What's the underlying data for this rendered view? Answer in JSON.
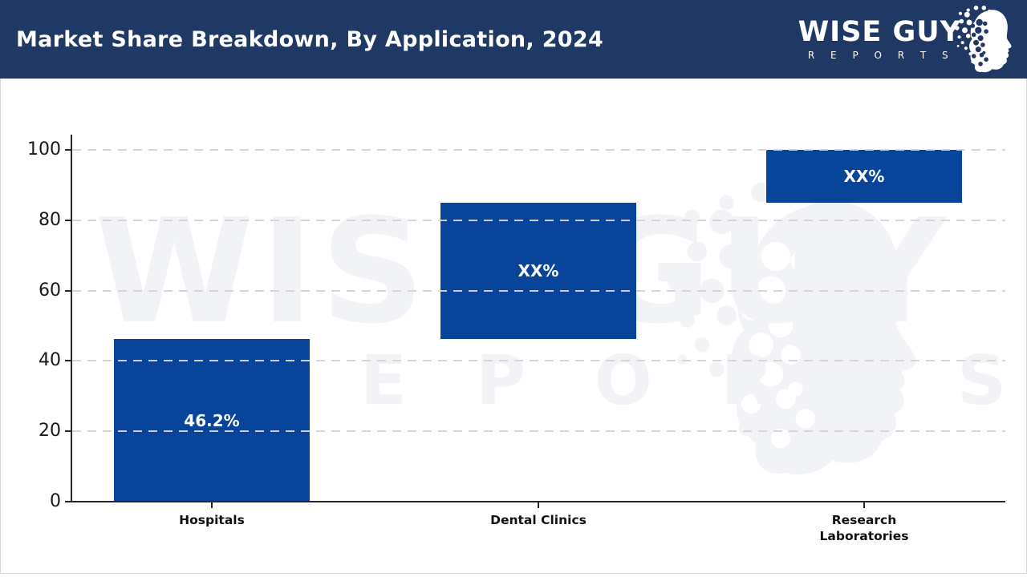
{
  "header": {
    "title": "Market Share Breakdown, By Application, 2024",
    "brand": {
      "name_line1": "WISE GUY",
      "name_line2": "R E P O R T S"
    }
  },
  "watermark": {
    "line1": "WISE GUY",
    "line2": "R E P O R T S"
  },
  "colors": {
    "header_bg": "#203864",
    "bar_fill": "#07449a",
    "grid": "#d5d5d5",
    "axis": "#262626",
    "bar_label": "#ffffff",
    "watermark": "#f2f3f6"
  },
  "chart_data": {
    "type": "bar",
    "subtype": "stacked-percentage-breakdown",
    "title": "Market Share Breakdown, By Application, 2024",
    "categories": [
      "Hospitals",
      "Dental Clinics",
      "Research Laboratories"
    ],
    "segments": [
      {
        "category": "Hospitals",
        "start": 0,
        "end": 46.2,
        "label": "46.2%"
      },
      {
        "category": "Dental Clinics",
        "start": 46.2,
        "end": 85,
        "label": "XX%"
      },
      {
        "category": "Research Laboratories",
        "start": 85,
        "end": 100,
        "label": "XX%"
      }
    ],
    "xlabel": "",
    "ylabel": "",
    "yticks": [
      0,
      20,
      40,
      60,
      80,
      100
    ],
    "ylim": [
      0,
      105
    ],
    "grid": "horizontal-dashed",
    "legend": null
  }
}
